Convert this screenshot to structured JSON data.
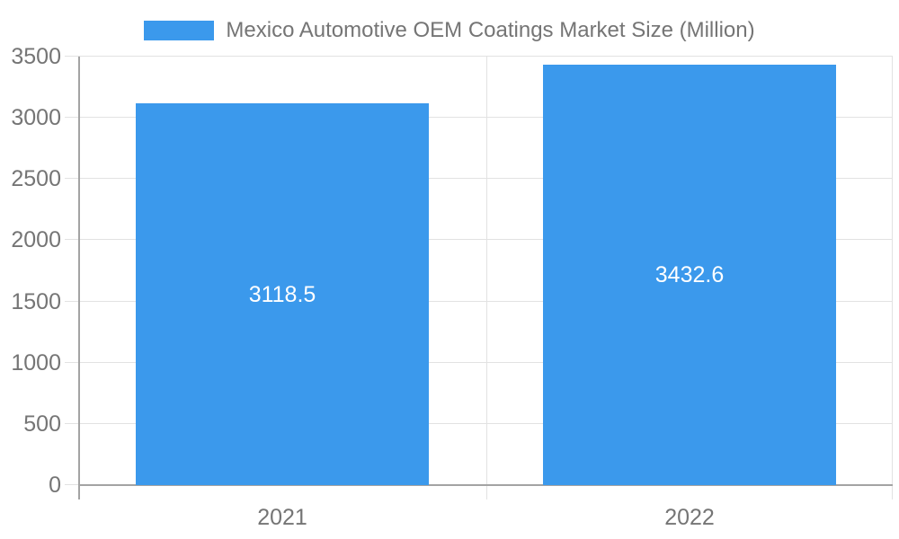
{
  "legend": {
    "position": "top"
  },
  "chart_data": {
    "type": "bar",
    "title": "Mexico Automotive OEM Coatings Market Size (Million)",
    "categories": [
      "2021",
      "2022"
    ],
    "values": [
      3118.5,
      3432.6
    ],
    "value_labels": [
      "3118.5",
      "3432.6"
    ],
    "xlabel": "",
    "ylabel": "",
    "ylim": [
      0,
      3500
    ],
    "yticks": [
      0,
      500,
      1000,
      1500,
      2000,
      2500,
      3000,
      3500
    ],
    "grid": true,
    "legend_position": "top",
    "colors": {
      "bar": "#3B99EC",
      "bar_label": "#FFFFFF",
      "axis_text": "#757575",
      "grid_line": "#E2E2E2",
      "axis_line": "#A3A3A3",
      "background": "#FFFFFF"
    }
  }
}
